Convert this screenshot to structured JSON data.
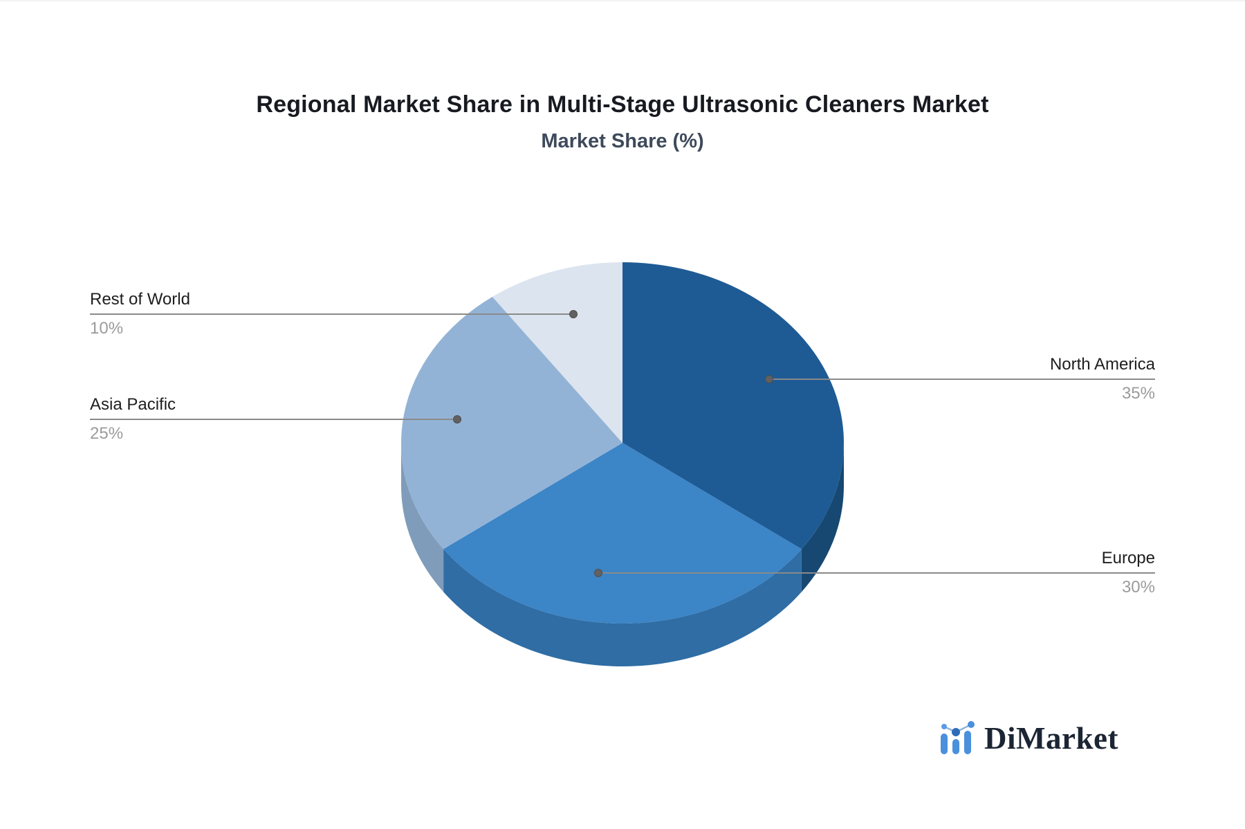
{
  "header": {
    "title": "Regional Market Share in Multi-Stage Ultrasonic Cleaners Market",
    "subtitle": "Market Share (%)"
  },
  "chart_data": {
    "type": "pie",
    "style": "3d",
    "title": "Regional Market Share in Multi-Stage Ultrasonic Cleaners Market",
    "subtitle": "Market Share (%)",
    "unit": "%",
    "rotation": "clockwise-from-top",
    "legend_position": "callout-labels",
    "slices": [
      {
        "label": "North America",
        "value": 35,
        "display": "35%",
        "color": "#1e5b94",
        "side_color": "#164872",
        "callout_side": "right"
      },
      {
        "label": "Europe",
        "value": 30,
        "display": "30%",
        "color": "#3c85c7",
        "side_color": "#2f6da4",
        "callout_side": "right"
      },
      {
        "label": "Asia Pacific",
        "value": 25,
        "display": "25%",
        "color": "#93b3d6",
        "side_color": "#7f9cba",
        "callout_side": "left"
      },
      {
        "label": "Rest of World",
        "value": 10,
        "display": "10%",
        "color": "#dce4ef",
        "side_color": "#b9c7d9",
        "callout_side": "left"
      }
    ]
  },
  "callout_colors": {
    "line": "#8a8a8a",
    "dot": "#616161",
    "name_text": "#1e1e1e",
    "percent_text": "#9b9b9b"
  },
  "branding": {
    "logo_text": "DiMarket",
    "icon": "bar-line-chart-icon",
    "text_color": "#1c2533",
    "icon_bar_color": "#4a90dd",
    "icon_dot_dark": "#2e6cb8",
    "icon_dot_light": "#5a9be6",
    "icon_line_color": "#8fb4d9"
  }
}
